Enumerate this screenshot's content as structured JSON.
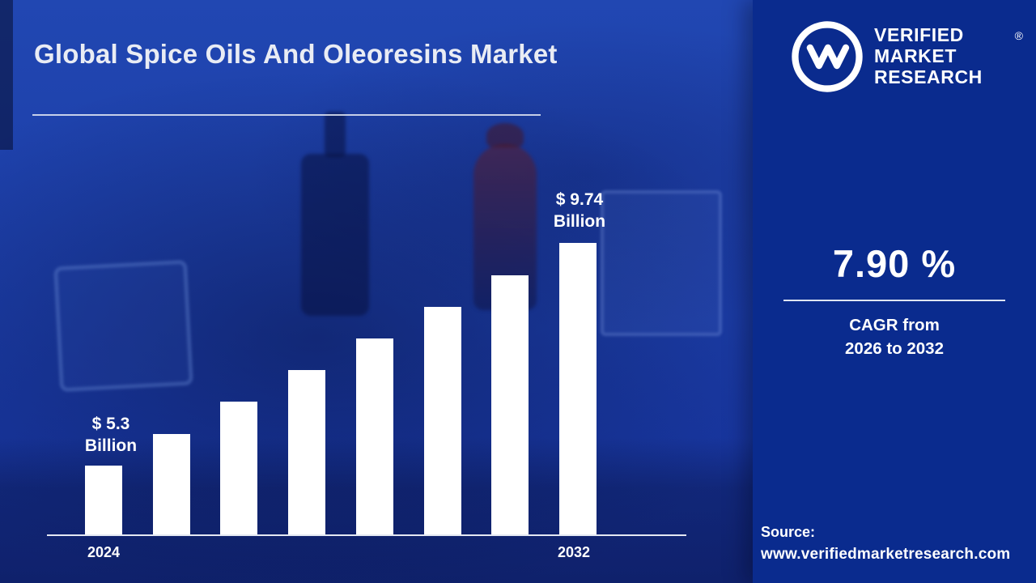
{
  "colors": {
    "left_bg": "#1c3ea9",
    "panel_bg": "#0a2b8e",
    "bar": "#ffffff",
    "text": "#ffffff"
  },
  "header": {
    "title": "Global Spice Oils And Oleoresins Market"
  },
  "chart_data": {
    "type": "bar",
    "title": "Global Spice Oils And Oleoresins Market",
    "unit": "USD Billion",
    "values": [
      5.3,
      5.93,
      6.57,
      7.2,
      7.83,
      8.47,
      9.1,
      9.74
    ],
    "x_tick_labels_visible": [
      "2024",
      "2032"
    ],
    "first_bar": {
      "year": "2024",
      "label": "$ 5.3\nBillion",
      "value": 5.3
    },
    "last_bar": {
      "year": "2032",
      "label": "$ 9.74\nBillion",
      "value": 9.74
    },
    "bar_color": "#ffffff",
    "grid": false,
    "baseline_axis": true
  },
  "panel": {
    "brand": {
      "lines": [
        "VERIFIED",
        "MARKET",
        "RESEARCH"
      ],
      "registered_mark": "®",
      "logo": "vmr-circle-monogram"
    },
    "cagr": {
      "value": "7.90 %",
      "caption": "CAGR from\n2026 to 2032"
    },
    "source": {
      "label": "Source:",
      "url": "www.verifiedmarketresearch.com"
    }
  }
}
